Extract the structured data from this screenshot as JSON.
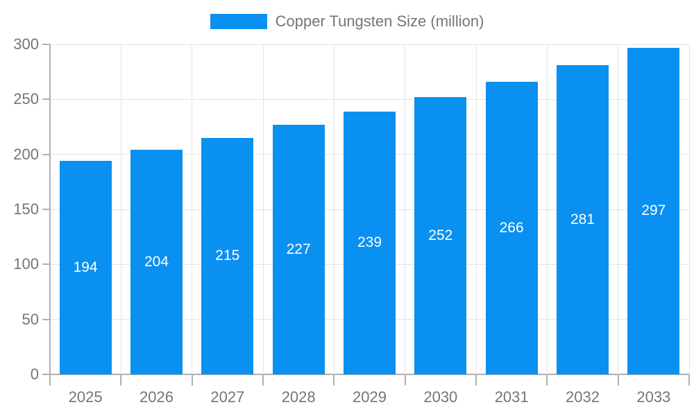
{
  "legend": {
    "label": "Copper Tungsten Size (million)"
  },
  "colors": {
    "bar": "#0a90f0",
    "axis": "#afafaf",
    "grid": "#e4e4e4",
    "tick_text": "#757575",
    "value_text": "#ffffff",
    "background": "#ffffff"
  },
  "chart_data": {
    "type": "bar",
    "title": "Copper Tungsten Size (million)",
    "categories": [
      "2025",
      "2026",
      "2027",
      "2028",
      "2029",
      "2030",
      "2031",
      "2032",
      "2033"
    ],
    "values": [
      194,
      204,
      215,
      227,
      239,
      252,
      266,
      281,
      297
    ],
    "series_name": "Copper Tungsten Size (million)",
    "xlabel": "",
    "ylabel": "",
    "ylim": [
      0,
      300
    ],
    "ytick_step": 50,
    "ytick_labels": [
      "0",
      "50",
      "100",
      "150",
      "200",
      "250",
      "300"
    ],
    "grid": true,
    "legend_position": "top-center",
    "value_label_position": "inside-center"
  }
}
